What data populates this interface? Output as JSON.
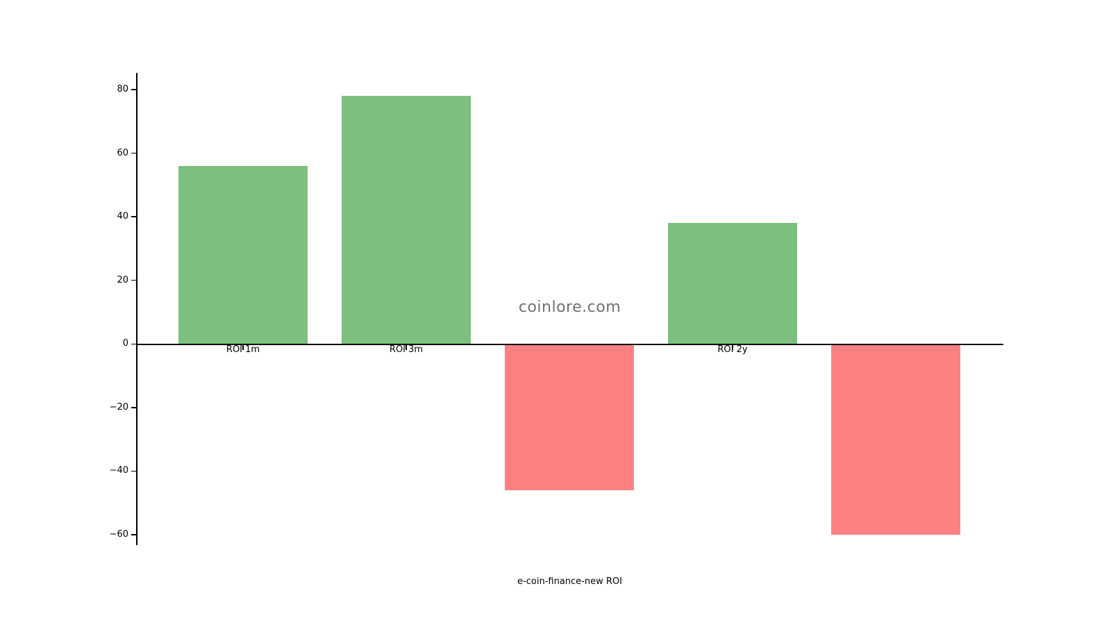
{
  "page": {
    "background": "#ffffff"
  },
  "chart_data": {
    "type": "bar",
    "title": "e-coin-finance-new ROI",
    "watermark": "coinlore.com",
    "categories": [
      "ROI 1m",
      "ROI 3m",
      "",
      "ROI 2y",
      ""
    ],
    "values": [
      56,
      78,
      -46,
      38,
      -60
    ],
    "bar_colors": [
      "#7cbf7e",
      "#7cbf7e",
      "#fd8181",
      "#7cbf7e",
      "#fd8181"
    ],
    "positive_color": "#7cbf7e",
    "negative_color": "#fd8181",
    "y_ticks": [
      80,
      60,
      40,
      20,
      0,
      -20,
      -40,
      -60
    ],
    "y_tick_labels": [
      "80",
      "60",
      "40",
      "20",
      "0",
      "−20",
      "−40",
      "−60"
    ],
    "ylim": [
      -63,
      85
    ],
    "xlabel": "",
    "ylabel": "",
    "grid": false,
    "legend": false,
    "axis_color": "#000000",
    "tick_text_color": "#000000",
    "watermark_color": "#707070",
    "notes": "x tick labels for bars 3 and 5 are hidden behind the negative (red) bars"
  }
}
